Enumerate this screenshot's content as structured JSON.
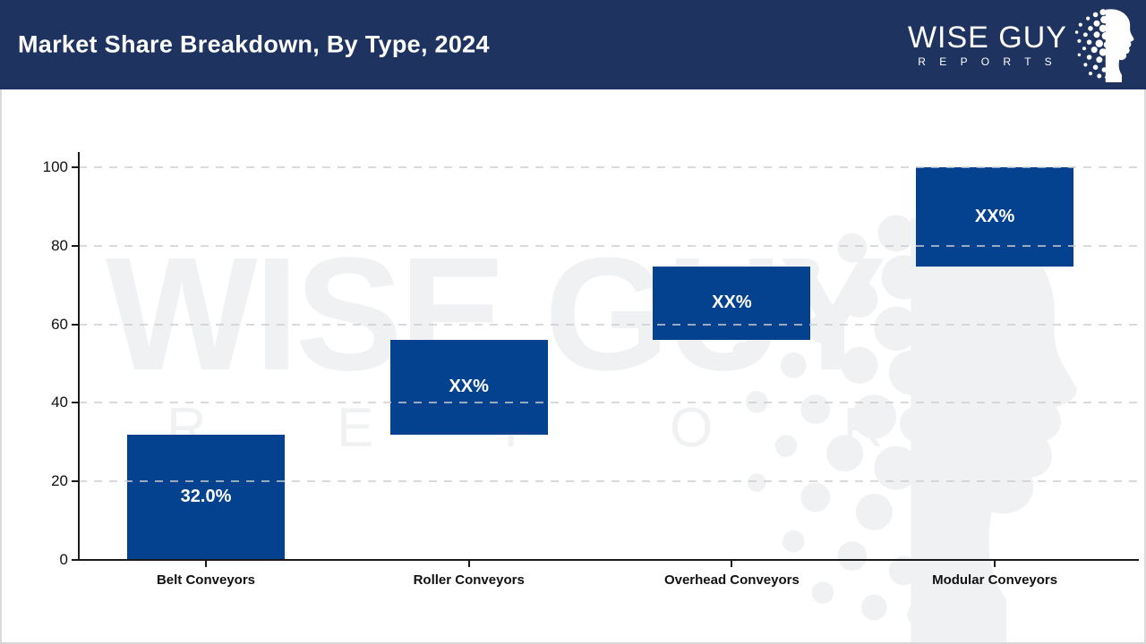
{
  "header": {
    "title": "Market Share Breakdown, By Type, 2024",
    "logo": {
      "line1": "WISE GUY",
      "line2": "R E P O R T S"
    }
  },
  "watermark": {
    "line1": "WISE GUY",
    "line2": "R E P O R T S"
  },
  "chart_data": {
    "type": "bar",
    "subtype": "floating-waterfall",
    "title": "Market Share Breakdown, By Type, 2024",
    "categories": [
      "Belt Conveyors",
      "Roller Conveyors",
      "Overhead Conveyors",
      "Modular Conveyors"
    ],
    "bars": [
      {
        "category": "Belt Conveyors",
        "start": 0,
        "end": 32,
        "label": "32.0%"
      },
      {
        "category": "Roller Conveyors",
        "start": 32,
        "end": 56,
        "label": "XX%"
      },
      {
        "category": "Overhead Conveyors",
        "start": 56,
        "end": 74.8,
        "label": "XX%"
      },
      {
        "category": "Modular Conveyors",
        "start": 74.8,
        "end": 100,
        "label": "XX%"
      }
    ],
    "y_ticks": [
      0,
      20,
      40,
      60,
      80,
      100
    ],
    "ylim": [
      0,
      105
    ],
    "xlabel": "",
    "ylabel": "",
    "grid": "horizontal-dashed",
    "legend": "none",
    "bar_color": "#04418f",
    "bar_label_color": "#ffffff"
  },
  "colors": {
    "header_bg": "#1f3360",
    "bar": "#04418f",
    "grid": "#d9dadb",
    "axis": "#1a1a1a",
    "watermark": "#f0f1f3",
    "page_border": "#d9d9d9"
  }
}
